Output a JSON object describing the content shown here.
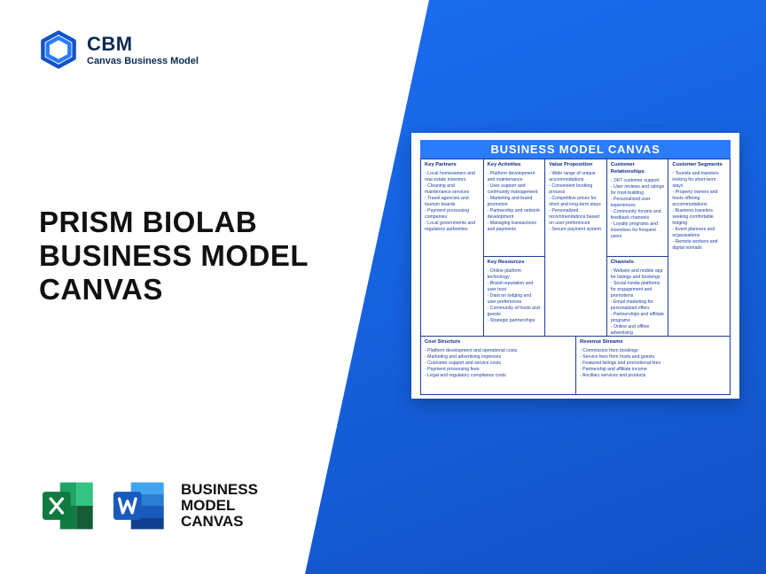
{
  "colors": {
    "blue_gradient_from": "#1a6ef0",
    "blue_gradient_to": "#1152c8",
    "text_dark": "#111111",
    "logo_navy": "#0b2a55",
    "canvas_header_bg": "#2b7bff",
    "canvas_border": "#1c3f9e",
    "canvas_text": "#1c3f9e",
    "excel_dark": "#0f7a3f",
    "excel_light": "#21a366",
    "word_dark": "#1a4ec4",
    "word_light": "#2b7bff",
    "white": "#ffffff"
  },
  "logo": {
    "acronym": "CBM",
    "subtitle": "Canvas Business Model"
  },
  "title": {
    "line1": "PRISM BIOLAB",
    "line2": "BUSINESS MODEL",
    "line3": "CANVAS"
  },
  "bottom_label": {
    "line1": "BUSINESS",
    "line2": "MODEL",
    "line3": "CANVAS"
  },
  "canvas": {
    "title": "BUSINESS MODEL CANVAS",
    "key_partners": {
      "heading": "Key Partners",
      "items": [
        "Local homeowners and real estate investors",
        "Cleaning and maintenance services",
        "Travel agencies and tourism boards",
        "Payment processing companies",
        "Local governments and regulatory authorities"
      ]
    },
    "key_activities": {
      "heading": "Key Activities",
      "items": [
        "Platform development and maintenance",
        "User support and community management",
        "Marketing and brand promotion",
        "Partnership and network development",
        "Managing transactions and payments"
      ]
    },
    "key_resources": {
      "heading": "Key Resources",
      "items": [
        "Online platform technology",
        "Brand reputation and user trust",
        "Data on lodging and user preferences",
        "Community of hosts and guests",
        "Strategic partnerships"
      ]
    },
    "value_proposition": {
      "heading": "Value Proposition",
      "items": [
        "Wide range of unique accommodations",
        "Convenient booking process",
        "Competitive prices for short and long-term stays",
        "Personalized recommendations based on user preferences",
        "Secure payment system"
      ]
    },
    "customer_relationships": {
      "heading": "Customer Relationships",
      "items": [
        "24/7 customer support",
        "User reviews and ratings for trust-building",
        "Personalized user experiences",
        "Community forums and feedback channels",
        "Loyalty programs and incentives for frequent users"
      ]
    },
    "channels": {
      "heading": "Channels",
      "items": [
        "Website and mobile app for listings and bookings",
        "Social media platforms for engagement and promotions",
        "Email marketing for personalized offers",
        "Partnerships and affiliate programs",
        "Online and offline advertising"
      ]
    },
    "customer_segments": {
      "heading": "Customer Segments",
      "items": [
        "Tourists and travelers looking for short-term stays",
        "Property owners and hosts offering accommodations",
        "Business travelers seeking comfortable lodging",
        "Event planners and organizations",
        "Remote workers and digital nomads"
      ]
    },
    "cost_structure": {
      "heading": "Cost Structure",
      "items": [
        "Platform development and operational costs",
        "Marketing and advertising expenses",
        "Customer support and service costs",
        "Payment processing fees",
        "Legal and regulatory compliance costs"
      ]
    },
    "revenue_streams": {
      "heading": "Revenue Streams",
      "items": [
        "Commission from bookings",
        "Service fees from hosts and guests",
        "Featured listings and promotional fees",
        "Partnership and affiliate income",
        "Ancillary services and products"
      ]
    }
  }
}
